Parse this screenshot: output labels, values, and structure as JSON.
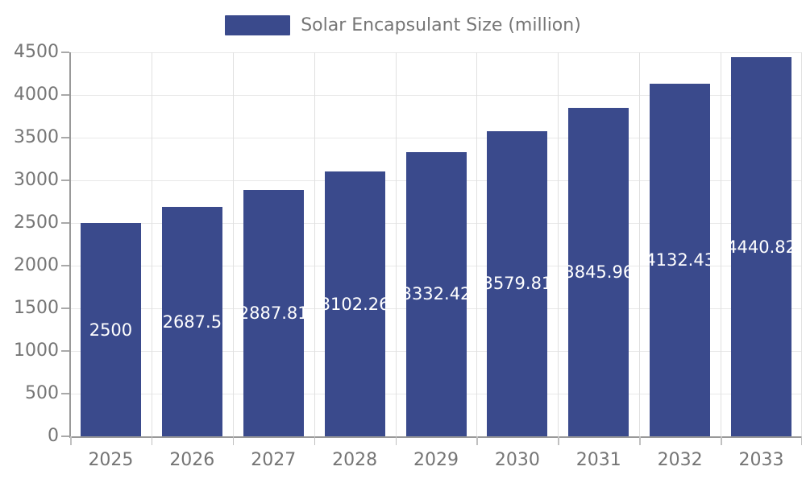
{
  "legend": {
    "label": "Solar Encapsulant Size (million)",
    "swatch_color": "#3A4A8C"
  },
  "colors": {
    "bar": "#3A4A8C",
    "axis_line": "#999999",
    "grid_h": "#e8e8e8",
    "grid_v": "#e0e0e0",
    "axis_text": "#757575",
    "value_label_text": "#ffffff",
    "background": "#ffffff"
  },
  "chart_data": {
    "type": "bar",
    "title": "Solar Encapsulant Size (million)",
    "categories": [
      "2025",
      "2026",
      "2027",
      "2028",
      "2029",
      "2030",
      "2031",
      "2032",
      "2033"
    ],
    "series": [
      {
        "name": "Solar Encapsulant Size (million)",
        "values": [
          2500,
          2687.5,
          2887.81,
          3102.26,
          3332.42,
          3579.81,
          3845.96,
          4132.43,
          4440.82
        ],
        "value_labels": [
          "2500",
          "2687.5",
          "2887.81",
          "3102.26",
          "3332.42",
          "3579.81",
          "3845.96",
          "4132.43",
          "4440.82"
        ]
      }
    ],
    "xlabel": "",
    "ylabel": "",
    "ylim": [
      0,
      4500
    ],
    "yticks": [
      0,
      500,
      1000,
      1500,
      2000,
      2500,
      3000,
      3500,
      4000,
      4500
    ],
    "grid": true,
    "legend_position": "top",
    "value_label_position": "inside-middle"
  }
}
